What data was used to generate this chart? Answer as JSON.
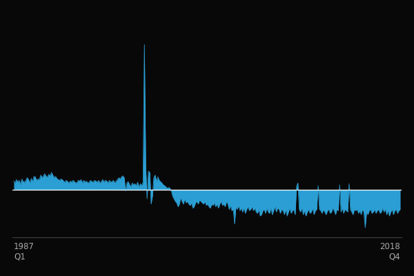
{
  "title": "",
  "xlabel_left": "1987\nQ1",
  "xlabel_right": "2018\nQ4",
  "background_color": "#080808",
  "area_color": "#2b9fd4",
  "zero_line_color": "#ffffff",
  "text_color": "#aaaaaa",
  "font_size_labels": 8.5,
  "values": [
    3.2,
    2.5,
    3.8,
    2.8,
    3.5,
    2.0,
    4.0,
    3.0,
    2.8,
    3.5,
    4.5,
    3.8,
    2.5,
    4.2,
    3.0,
    5.0,
    4.8,
    3.5,
    4.0,
    3.8,
    5.5,
    4.5,
    5.2,
    6.0,
    5.0,
    4.8,
    5.8,
    5.2,
    6.5,
    5.5,
    4.5,
    5.0,
    4.2,
    3.8,
    3.5,
    4.0,
    3.8,
    3.2,
    2.8,
    3.5,
    3.0,
    2.5,
    3.2,
    2.8,
    3.5,
    3.0,
    2.5,
    2.8,
    3.5,
    3.2,
    3.8,
    2.5,
    3.5,
    2.8,
    3.2,
    2.5,
    2.8,
    3.5,
    3.0,
    2.8,
    3.5,
    3.2,
    2.8,
    3.5,
    2.5,
    3.0,
    3.8,
    2.8,
    3.5,
    3.2,
    2.5,
    3.5,
    2.8,
    3.0,
    3.5,
    2.5,
    3.2,
    3.8,
    4.5,
    4.0,
    4.8,
    5.2,
    4.5,
    -0.5,
    2.5,
    3.0,
    1.8,
    1.2,
    2.5,
    1.8,
    2.2,
    1.5,
    2.8,
    1.0,
    2.2,
    1.5,
    2.8,
    55.0,
    8.5,
    -3.5,
    7.0,
    6.5,
    -5.5,
    -2.5,
    4.5,
    5.5,
    3.0,
    4.8,
    3.5,
    3.0,
    2.5,
    1.8,
    1.5,
    1.0,
    0.5,
    0.8,
    0.5,
    -0.5,
    -2.5,
    -3.5,
    -4.5,
    -5.0,
    -6.5,
    -5.5,
    -3.0,
    -4.5,
    -5.5,
    -3.5,
    -5.0,
    -4.5,
    -5.5,
    -6.0,
    -5.0,
    -7.0,
    -6.5,
    -5.0,
    -4.5,
    -5.5,
    -4.0,
    -4.5,
    -5.0,
    -5.5,
    -4.5,
    -6.0,
    -5.5,
    -6.5,
    -7.0,
    -5.5,
    -6.0,
    -5.0,
    -6.5,
    -5.5,
    -7.0,
    -5.5,
    -4.5,
    -6.0,
    -5.5,
    -6.5,
    -4.5,
    -5.5,
    -7.5,
    -6.0,
    -8.0,
    -7.5,
    -13.0,
    -6.5,
    -7.5,
    -6.0,
    -8.0,
    -7.0,
    -8.5,
    -7.0,
    -9.0,
    -7.5,
    -6.5,
    -8.0,
    -7.5,
    -6.5,
    -8.0,
    -7.0,
    -8.5,
    -9.0,
    -7.5,
    -10.0,
    -9.5,
    -8.0,
    -7.5,
    -9.0,
    -7.0,
    -8.5,
    -9.0,
    -7.0,
    -9.5,
    -8.0,
    -6.5,
    -8.5,
    -7.0,
    -7.5,
    -9.0,
    -7.5,
    -8.0,
    -9.5,
    -7.5,
    -10.0,
    -8.5,
    -7.0,
    -9.0,
    -8.0,
    -7.5,
    -9.5,
    1.2,
    2.5,
    -7.5,
    -8.5,
    -7.0,
    -9.5,
    -8.0,
    -10.0,
    -8.5,
    -7.5,
    -9.0,
    -8.5,
    -7.0,
    -9.5,
    -8.0,
    -7.5,
    1.5,
    -7.5,
    -8.0,
    -9.0,
    -7.5,
    -8.5,
    -9.5,
    -8.0,
    -7.5,
    -9.0,
    -8.5,
    -7.0,
    -8.0,
    -9.5,
    -7.5,
    -8.0,
    1.8,
    -8.5,
    -7.0,
    -9.0,
    -7.5,
    -8.0,
    -8.5,
    2.2,
    -7.5,
    -8.5,
    -9.5,
    -7.5,
    -8.0,
    -7.5,
    -9.0,
    -8.0,
    -9.5,
    -7.5,
    -8.5,
    -14.5,
    -8.5,
    -9.5,
    -8.0,
    -7.5,
    -9.0,
    -8.5,
    -7.5,
    -9.0,
    -8.0,
    -7.5,
    -9.0,
    -8.5,
    -7.0,
    -8.5,
    -7.5,
    -9.5,
    -8.0,
    -10.0,
    -8.5,
    -7.5,
    -9.5,
    -8.0,
    -7.5,
    -9.0,
    -8.0,
    -7.5
  ]
}
